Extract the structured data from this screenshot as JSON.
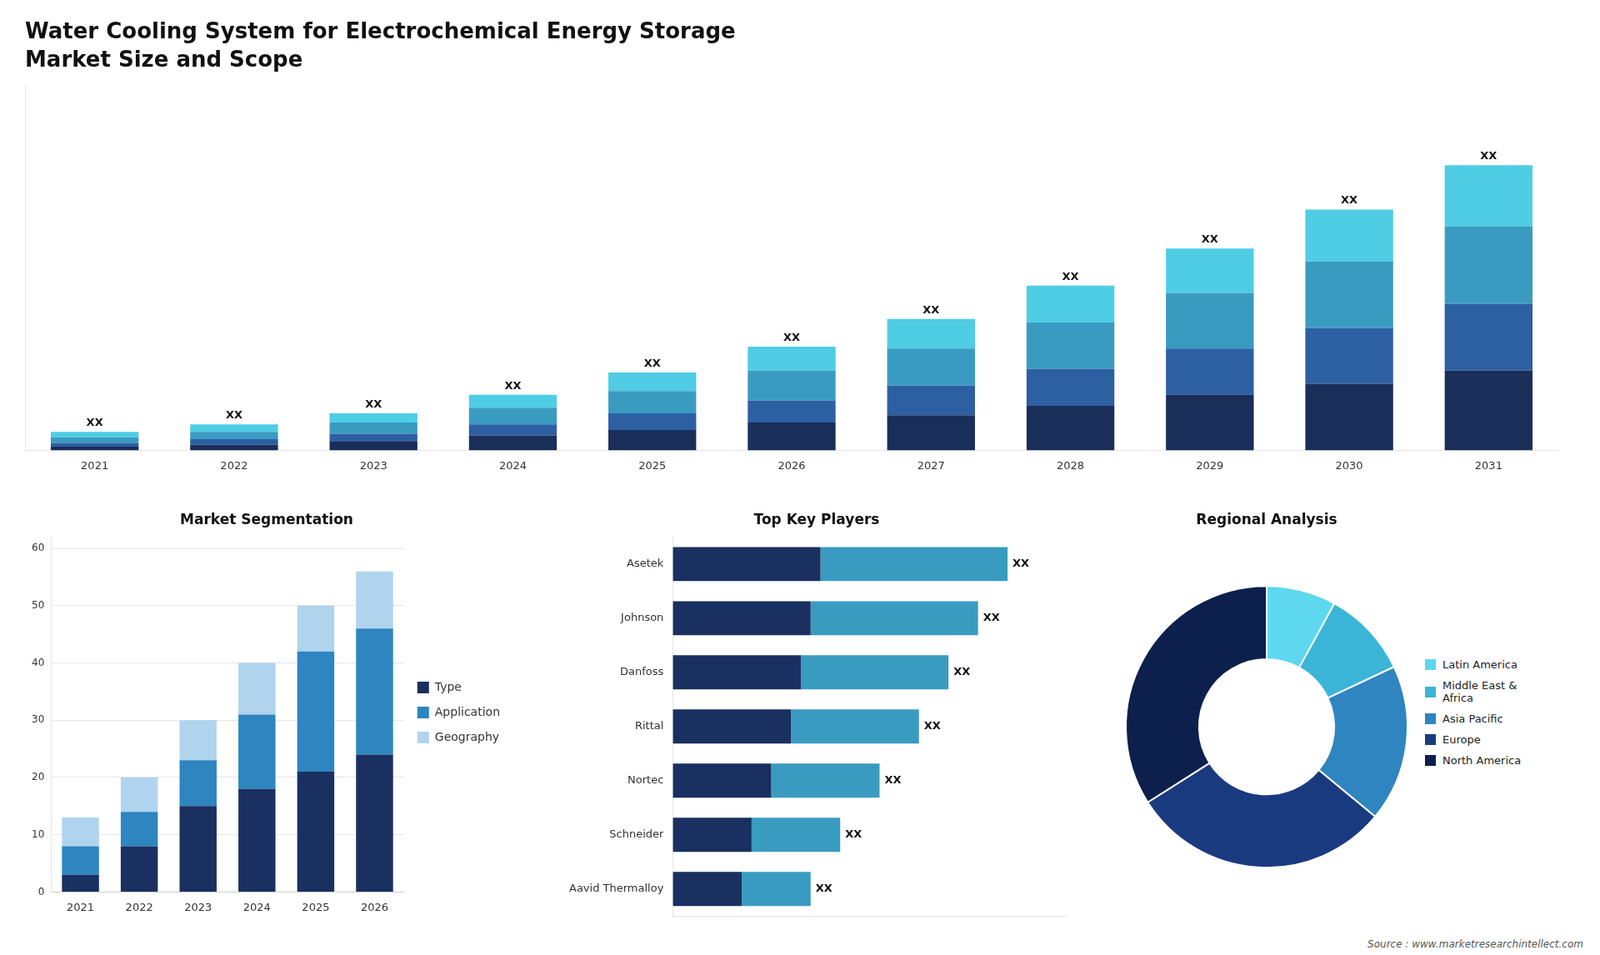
{
  "chart_data": [
    {
      "type": "bar",
      "title": "Water Cooling System for Electrochemical Energy Storage",
      "subtitle": "Market Size and Scope",
      "annotations": [
        "Source : www.marketresearchintellect.com"
      ],
      "stacked": true,
      "categories": [
        "2021",
        "2022",
        "2023",
        "2024",
        "2025",
        "2026",
        "2027",
        "2028",
        "2029",
        "2030",
        "2031"
      ],
      "series": [
        {
          "color": "#1a2e5a",
          "values": [
            2,
            3,
            5,
            8,
            11,
            15,
            19,
            24,
            30,
            36,
            43
          ]
        },
        {
          "color": "#2d5fa3",
          "values": [
            2,
            3,
            4,
            6,
            9,
            12,
            16,
            20,
            25,
            30,
            36
          ]
        },
        {
          "color": "#3a9bc1",
          "values": [
            3,
            4,
            6,
            9,
            12,
            16,
            20,
            25,
            30,
            36,
            42
          ]
        },
        {
          "color": "#4ecde4",
          "values": [
            3,
            4,
            5,
            7,
            10,
            13,
            16,
            20,
            24,
            28,
            33
          ],
          "value_labels": [
            "XX",
            "XX",
            "XX",
            "XX",
            "XX",
            "XX",
            "XX",
            "XX",
            "XX",
            "XX",
            "XX"
          ]
        }
      ],
      "ylim": [
        0,
        197.12
      ],
      "tick_labels": "x",
      "grid": false
    },
    {
      "type": "bar",
      "title": "Market Segmentation",
      "stacked": true,
      "categories": [
        "2021",
        "2022",
        "2023",
        "2024",
        "2025",
        "2026"
      ],
      "series": [
        {
          "name": "Type",
          "color": "#1a3060",
          "values": [
            3,
            8,
            15,
            18,
            21,
            24
          ]
        },
        {
          "name": "Application",
          "color": "#2e85c0",
          "values": [
            5,
            6,
            8,
            13,
            21,
            22
          ]
        },
        {
          "name": "Geography",
          "color": "#b0d4ee",
          "values": [
            5,
            6,
            7,
            9,
            8,
            10
          ]
        }
      ],
      "ylim": [
        0,
        62
      ],
      "yticks": [
        0,
        10,
        20,
        30,
        40,
        50,
        60
      ],
      "grid": true,
      "legend": "right"
    },
    {
      "type": "bar",
      "orientation": "horizontal",
      "title": "Top Key Players",
      "stacked": true,
      "categories": [
        "Asetek",
        "Johnson",
        "Danfoss",
        "Rittal",
        "Nortec",
        "Schneider",
        "Aavid Thermalloy"
      ],
      "series": [
        {
          "color": "#1a3060",
          "values": [
            30,
            28,
            26,
            24,
            20,
            16,
            14
          ]
        },
        {
          "color": "#3a9bc1",
          "values": [
            38,
            34,
            30,
            26,
            22,
            18,
            14
          ],
          "value_labels": [
            "XX",
            "XX",
            "XX",
            "XX",
            "XX",
            "XX",
            "XX"
          ]
        }
      ],
      "xlim": [
        0,
        80
      ],
      "tick_labels": "y",
      "grid": false
    },
    {
      "type": "doughnut",
      "title": "Regional Analysis",
      "categories": [
        "Latin America",
        "Middle East &\nAfrica",
        "Asia Pacific",
        "Europe",
        "North America"
      ],
      "values": [
        8,
        10,
        18,
        30,
        34
      ],
      "colors": [
        "#5dd8ee",
        "#3ab5d8",
        "#2e85c0",
        "#1a3a80",
        "#0d1f4c"
      ],
      "legend": "right"
    }
  ]
}
